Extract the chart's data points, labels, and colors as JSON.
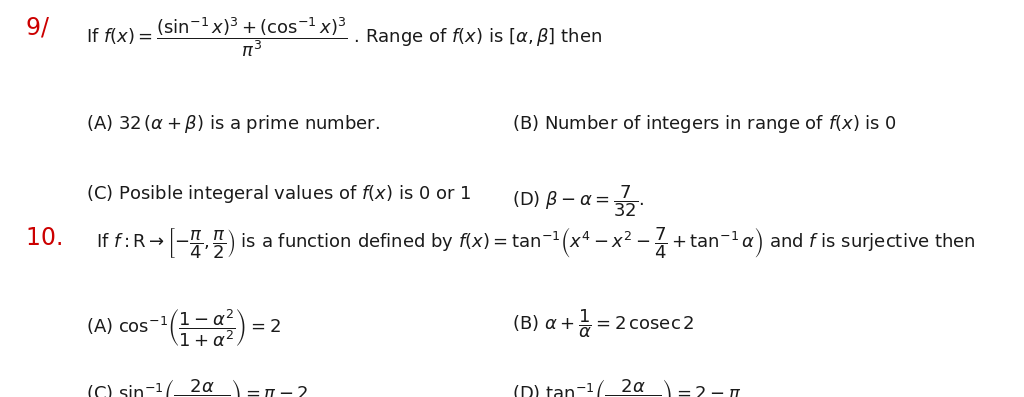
{
  "background_color": "#ffffff",
  "figsize": [
    10.24,
    3.97
  ],
  "dpi": 100,
  "fs_main": 13.0,
  "text_color": "#1a1a1a",
  "num_color": "#cc0000"
}
